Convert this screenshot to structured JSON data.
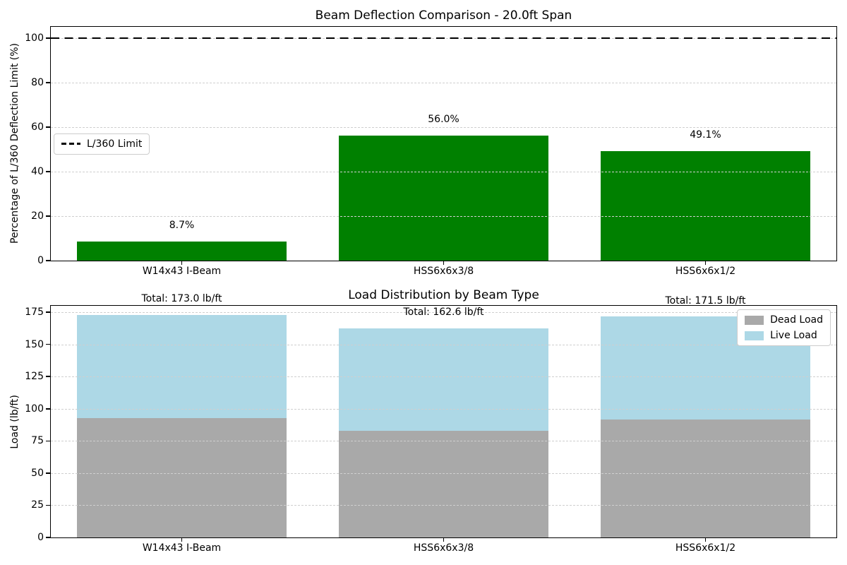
{
  "figure": {
    "background": "#ffffff"
  },
  "chart_data": [
    {
      "type": "bar",
      "title": "Beam Deflection Comparison - 20.0ft Span",
      "ylabel": "Percentage of L/360 Deflection Limit (%)",
      "xlabel": "",
      "categories": [
        "W14x43 I-Beam",
        "HSS6x6x3/8",
        "HSS6x6x1/2"
      ],
      "values": [
        8.7,
        56.0,
        49.1
      ],
      "bar_labels": [
        "8.7%",
        "56.0%",
        "49.1%"
      ],
      "bar_color": "#008000",
      "ylim": [
        0,
        105
      ],
      "yticks": [
        0,
        20,
        40,
        60,
        80,
        100
      ],
      "grid": true,
      "reference_line": {
        "value": 100,
        "label": "L/360 Limit",
        "color": "#000000",
        "style": "dashed"
      },
      "legend": {
        "position": "center-left",
        "entries": [
          {
            "label": "L/360 Limit",
            "swatch": "dashed-line",
            "color": "#000000"
          }
        ]
      }
    },
    {
      "type": "stacked-bar",
      "title": "Load Distribution by Beam Type",
      "ylabel": "Load (lb/ft)",
      "xlabel": "",
      "categories": [
        "W14x43 I-Beam",
        "HSS6x6x3/8",
        "HSS6x6x1/2"
      ],
      "series": [
        {
          "name": "Dead Load",
          "color": "#a9a9a9",
          "values": [
            93.0,
            82.6,
            91.5
          ]
        },
        {
          "name": "Live Load",
          "color": "#add8e6",
          "values": [
            80.0,
            80.0,
            80.0
          ]
        }
      ],
      "totals": [
        173.0,
        162.6,
        171.5
      ],
      "total_labels": [
        "Total: 173.0 lb/ft",
        "Total: 162.6 lb/ft",
        "Total: 171.5 lb/ft"
      ],
      "ylim": [
        0,
        180
      ],
      "yticks": [
        0,
        25,
        50,
        75,
        100,
        125,
        150,
        175
      ],
      "grid": true,
      "legend": {
        "position": "upper-right",
        "entries": [
          {
            "label": "Dead Load",
            "swatch": "patch",
            "color": "#a9a9a9"
          },
          {
            "label": "Live Load",
            "swatch": "patch",
            "color": "#add8e6"
          }
        ]
      }
    }
  ]
}
